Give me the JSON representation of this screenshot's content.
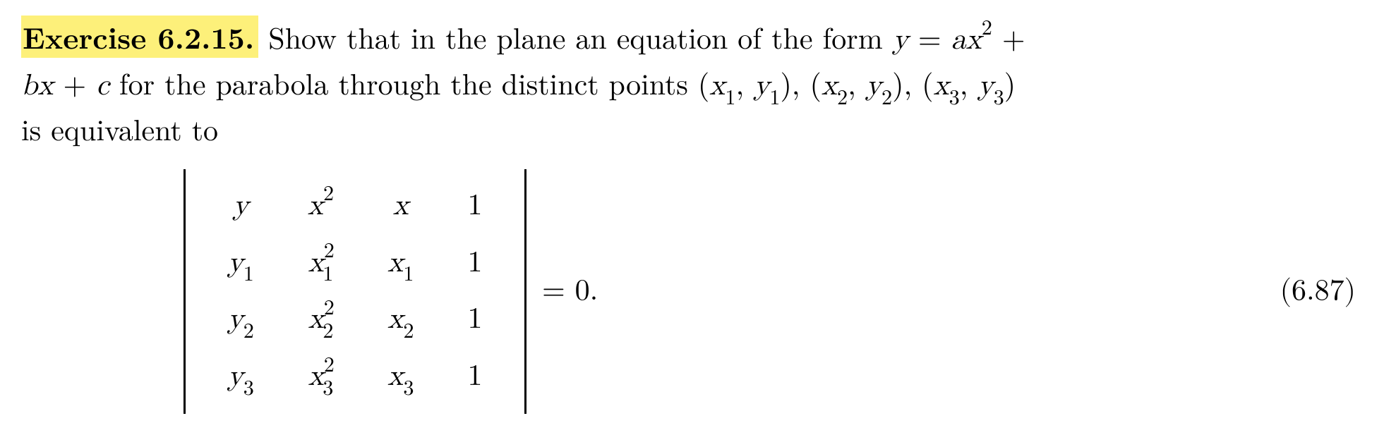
{
  "exercise": {
    "label": "Exercise 6.2.15.",
    "highlight_color": "#fdf07a",
    "text_part1": " Show that in the plane an equation of the form ",
    "eq_inline_1a": "y",
    "eq_inline_1b": " = ",
    "eq_inline_1c": "ax",
    "eq_inline_1c_sup": "2",
    "eq_inline_1d": " + ",
    "eq_inline_2a": "bx",
    "eq_inline_2b": " + ",
    "eq_inline_2c": "c",
    "text_part2": " for the parabola through the distinct points ",
    "pt1_open": "(",
    "pt1_x": "x",
    "pt1_xsub": "1",
    "pt1_comma": ", ",
    "pt1_y": "y",
    "pt1_ysub": "1",
    "pt1_close": "),  ",
    "pt2_open": "(",
    "pt2_x": "x",
    "pt2_xsub": "2",
    "pt2_comma": ", ",
    "pt2_y": "y",
    "pt2_ysub": "2",
    "pt2_close": "),  ",
    "pt3_open": "(",
    "pt3_x": "x",
    "pt3_xsub": "3",
    "pt3_comma": ", ",
    "pt3_y": "y",
    "pt3_ysub": "3",
    "pt3_close": ")",
    "text_part3": "is equivalent to"
  },
  "determinant": {
    "rows": [
      {
        "c1_var": "y",
        "c1_sub": "",
        "c2_var": "x",
        "c2_sup": "2",
        "c2_sub": "",
        "c3_var": "x",
        "c3_sub": "",
        "c4": "1"
      },
      {
        "c1_var": "y",
        "c1_sub": "1",
        "c2_var": "x",
        "c2_sup": "2",
        "c2_sub": "1",
        "c3_var": "x",
        "c3_sub": "1",
        "c4": "1"
      },
      {
        "c1_var": "y",
        "c1_sub": "2",
        "c2_var": "x",
        "c2_sup": "2",
        "c2_sub": "2",
        "c3_var": "x",
        "c3_sub": "2",
        "c4": "1"
      },
      {
        "c1_var": "y",
        "c1_sub": "3",
        "c2_var": "x",
        "c2_sup": "2",
        "c2_sub": "3",
        "c3_var": "x",
        "c3_sub": "3",
        "c4": "1"
      }
    ],
    "rhs_eq": " = ",
    "rhs_zero": "0",
    "rhs_period": "."
  },
  "equation_number": "(6.87)",
  "colors": {
    "text": "#000000",
    "background": "#ffffff",
    "highlight": "#fdf07a"
  },
  "fonts": {
    "body_size_pt": 42,
    "family": "Latin Modern / Computer Modern serif"
  }
}
